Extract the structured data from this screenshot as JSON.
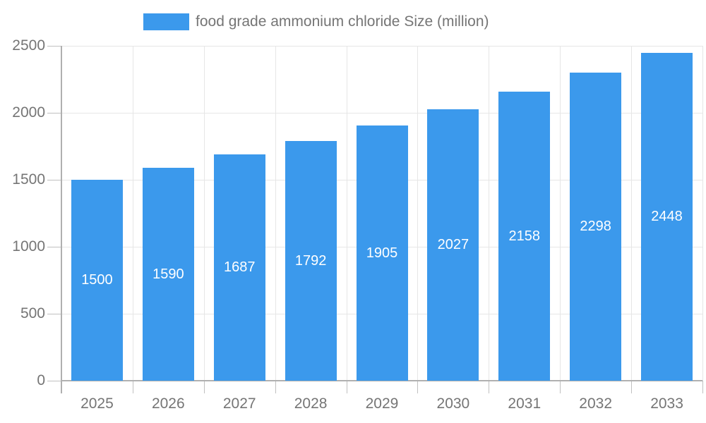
{
  "legend": {
    "label": "food grade ammonium chloride Size (million)"
  },
  "chart_data": {
    "type": "bar",
    "title": "",
    "categories": [
      "2025",
      "2026",
      "2027",
      "2028",
      "2029",
      "2030",
      "2031",
      "2032",
      "2033"
    ],
    "series": [
      {
        "name": "food grade ammonium chloride Size (million)",
        "values": [
          1500,
          1590,
          1687,
          1792,
          1905,
          2027,
          2158,
          2298,
          2448
        ]
      }
    ],
    "xlabel": "",
    "ylabel": "",
    "ylim": [
      0,
      2500
    ],
    "yticks": [
      0,
      500,
      1000,
      1500,
      2000,
      2500
    ],
    "grid": true,
    "legend_position": "top",
    "value_labels": "inside-center"
  },
  "colors": {
    "bar": "#3B99EC",
    "grid": "#e6e6e6",
    "axis": "#b0b0b0",
    "tick": "#c0c0c0",
    "text": "#757575",
    "value_text": "#ffffff",
    "background": "#ffffff"
  }
}
